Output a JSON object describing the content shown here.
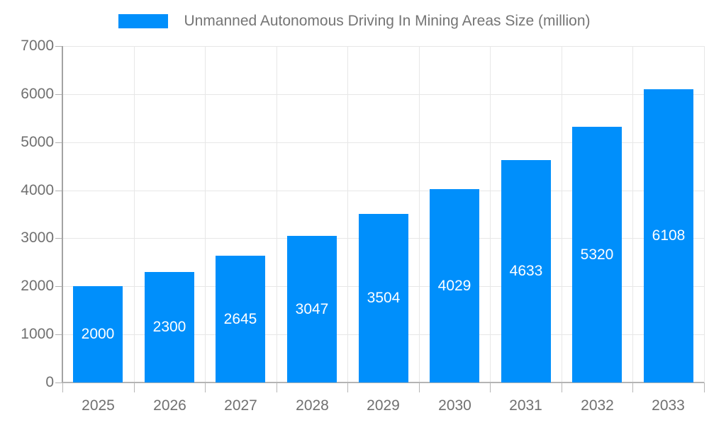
{
  "chart_data": {
    "type": "bar",
    "title": "Unmanned Autonomous Driving In Mining Areas Size (million)",
    "categories": [
      "2025",
      "2026",
      "2027",
      "2028",
      "2029",
      "2030",
      "2031",
      "2032",
      "2033"
    ],
    "values": [
      2000,
      2300,
      2645,
      3047,
      3504,
      4029,
      4633,
      5320,
      6108
    ],
    "series": [
      {
        "name": "Unmanned Autonomous Driving In Mining Areas Size (million)",
        "values": [
          2000,
          2300,
          2645,
          3047,
          3504,
          4029,
          4633,
          5320,
          6108
        ]
      }
    ],
    "xlabel": "",
    "ylabel": "",
    "ylim": [
      0,
      7000
    ],
    "y_ticks": [
      0,
      1000,
      2000,
      3000,
      4000,
      5000,
      6000,
      7000
    ],
    "grid": true,
    "legend_position": "top",
    "value_labels_inside_bars": true,
    "colors": {
      "bar": "#008FFB",
      "bar_value_text": "#ffffff",
      "axis_text": "#707070",
      "legend_text": "#757575",
      "gridline": "#e7e7e7",
      "axis_line": "#a8a8a8"
    }
  }
}
